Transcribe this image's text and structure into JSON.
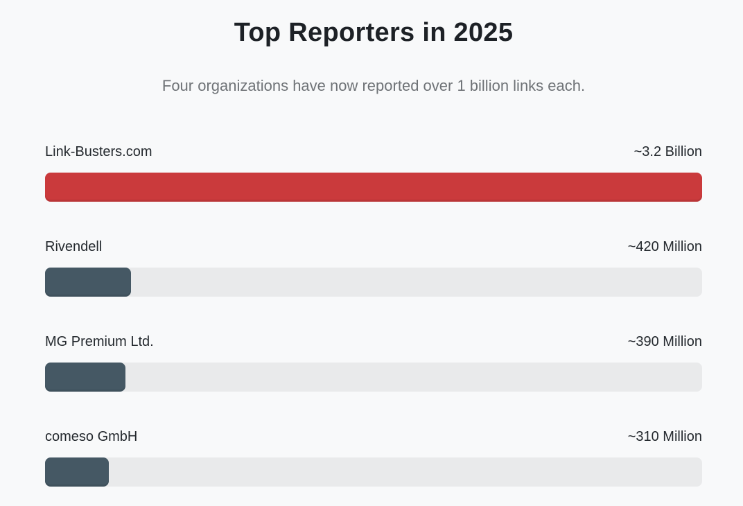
{
  "page": {
    "title": "Top Reporters in 2025",
    "subtitle": "Four organizations have now reported over 1 billion links each.",
    "background": "#f8f9fa"
  },
  "chart_data": {
    "type": "bar",
    "orientation": "horizontal",
    "title": "Top Reporters in 2025",
    "subtitle": "Four organizations have now reported over 1 billion links each.",
    "categories": [
      "Link-Busters.com",
      "Rivendell",
      "MG Premium Ltd.",
      "comeso GmbH"
    ],
    "values": [
      3200000000,
      420000000,
      390000000,
      310000000
    ],
    "value_labels": [
      "~3.2 Billion",
      "~420 Million",
      "~390 Million",
      "~310 Million"
    ],
    "bar_colors": [
      "#ca3a3c",
      "#455864",
      "#455864",
      "#455864"
    ],
    "track_color": "#e9eaeb",
    "xlim": [
      0,
      3200000000
    ],
    "xlabel": "",
    "ylabel": "",
    "legend": false,
    "grid": false
  }
}
